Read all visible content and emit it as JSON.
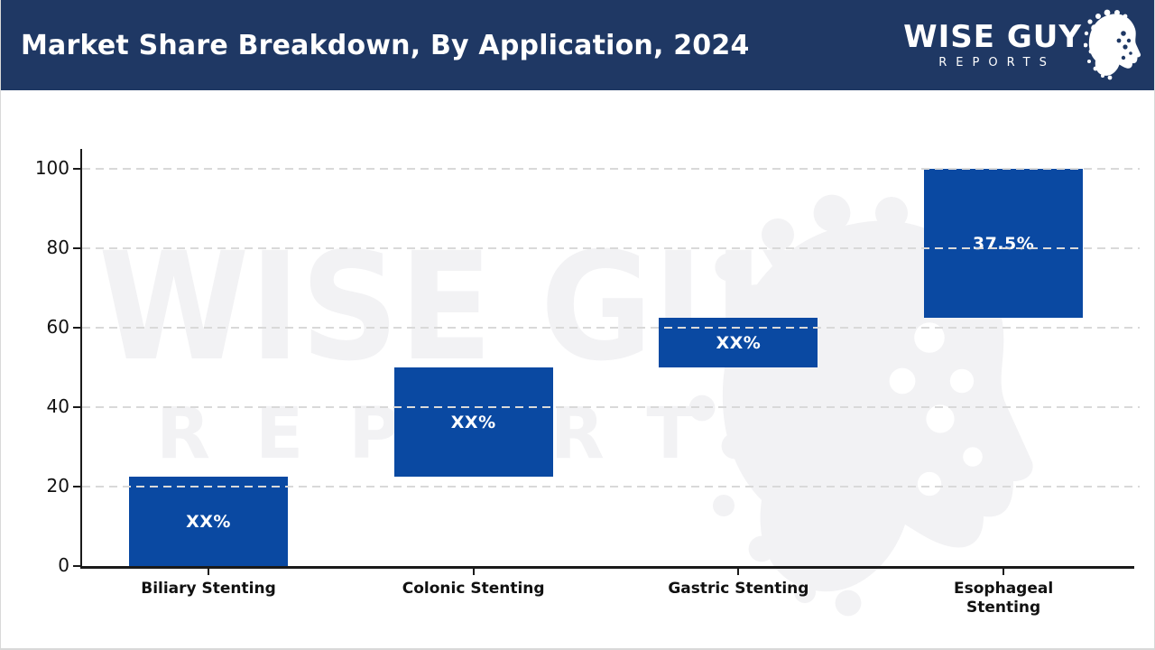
{
  "header": {
    "title": "Market Share Breakdown, By Application, 2024",
    "logo": {
      "name": "WISE GUY",
      "sub": "REPORTS"
    }
  },
  "watermark": {
    "line1": "WISE GUY",
    "line2": "REPORTS"
  },
  "colors": {
    "header_bg": "#1f3864",
    "bar": "#0a49a2",
    "grid": "#d9d9d9",
    "axis": "#1a1a1a",
    "bar_label": "#ffffff",
    "watermark": "#f2f2f4",
    "border": "#d9d9d9"
  },
  "chart_data": {
    "type": "bar",
    "subtype": "waterfall-floating-bars",
    "title": "Market Share Breakdown, By Application, 2024",
    "categories": [
      "Biliary Stenting",
      "Colonic Stenting",
      "Gastric Stenting",
      "Esophageal Stenting"
    ],
    "segments": [
      {
        "category": "Biliary Stenting",
        "start": 0,
        "end": 22.5,
        "size": 22.5,
        "label": "XX%"
      },
      {
        "category": "Colonic Stenting",
        "start": 22.5,
        "end": 50,
        "size": 27.5,
        "label": "XX%"
      },
      {
        "category": "Gastric Stenting",
        "start": 50,
        "end": 62.5,
        "size": 12.5,
        "label": "XX%"
      },
      {
        "category": "Esophageal Stenting",
        "start": 62.5,
        "end": 100,
        "size": 37.5,
        "label": "37.5%"
      }
    ],
    "xlabel": "",
    "ylabel": "",
    "ylim": [
      0,
      100
    ],
    "yticks": [
      0,
      20,
      40,
      60,
      80,
      100
    ],
    "grid": "horizontal-dashed, drawn above bars",
    "legend": null
  }
}
